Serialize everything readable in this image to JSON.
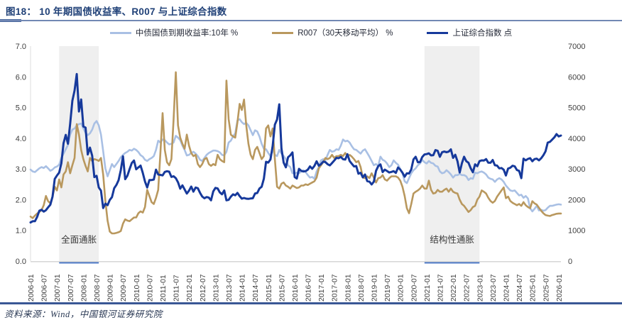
{
  "header": {
    "title": "图18： 10 年期国债收益率、R007 与上证综合指数"
  },
  "legend": [
    {
      "label": "中债国债到期收益率:10年 %",
      "color": "#A9C0E4"
    },
    {
      "label": "R007（30天移动平均） %",
      "color": "#B9985E"
    },
    {
      "label": "上证综合指数 点",
      "color": "#16399B"
    }
  ],
  "footer": {
    "source": "资料来源：Wind，中国银河证券研究院"
  },
  "chart_data": {
    "type": "line",
    "title": "10 年期国债收益率、R007 与上证综合指数",
    "x_start": "2006-01",
    "x_interval": "monthly",
    "x_tick_labels": [
      "2006-01",
      "2006-07",
      "2007-01",
      "2007-07",
      "2008-01",
      "2008-07",
      "2009-01",
      "2009-07",
      "2010-01",
      "2010-07",
      "2011-01",
      "2011-07",
      "2012-01",
      "2012-07",
      "2013-01",
      "2013-07",
      "2014-01",
      "2014-07",
      "2015-01",
      "2015-07",
      "2016-01",
      "2016-07",
      "2017-01",
      "2017-07",
      "2018-01",
      "2018-07",
      "2019-01",
      "2019-07",
      "2020-01",
      "2020-07",
      "2021-01",
      "2021-07",
      "2022-01",
      "2022-07",
      "2023-01",
      "2023-07",
      "2024-01",
      "2024-07",
      "2025-01",
      "2025-07",
      "2026-01"
    ],
    "left_axis": {
      "ticks": [
        "7.0",
        "6.0",
        "5.0",
        "4.0",
        "3.0",
        "2.0",
        "1.0",
        "0.0"
      ],
      "min": 0,
      "max": 7
    },
    "right_axis": {
      "ticks": [
        "7000",
        "6000",
        "5000",
        "4000",
        "3000",
        "2000",
        "1000",
        "0"
      ],
      "min": 0,
      "max": 7000
    },
    "bands": [
      {
        "label": "全面通胀",
        "x_from": "2007-02",
        "x_to": "2008-08"
      },
      {
        "label": "结构性通胀",
        "x_from": "2020-12",
        "x_to": "2023-01"
      }
    ],
    "series": [
      {
        "name": "中债国债到期收益率:10年 %",
        "axis": "left",
        "color": "#A9C0E4",
        "values": [
          2.98,
          2.92,
          2.9,
          2.96,
          3.02,
          3.06,
          3.03,
          3.09,
          3.02,
          2.94,
          2.98,
          3.05,
          3.08,
          3.14,
          3.36,
          3.5,
          3.64,
          3.78,
          4.12,
          4.28,
          4.32,
          4.42,
          4.46,
          4.48,
          4.32,
          4.18,
          4.1,
          4.16,
          4.28,
          4.48,
          4.56,
          4.42,
          4.12,
          3.58,
          3.02,
          2.76,
          2.96,
          3.16,
          3.06,
          3.16,
          3.26,
          3.38,
          3.46,
          3.52,
          3.56,
          3.62,
          3.6,
          3.66,
          3.62,
          3.55,
          3.45,
          3.4,
          3.3,
          3.26,
          3.32,
          3.36,
          3.42,
          3.62,
          3.92,
          3.86,
          3.96,
          3.94,
          3.86,
          3.8,
          3.82,
          3.86,
          4.08,
          4.02,
          3.94,
          3.76,
          3.62,
          3.44,
          3.46,
          3.52,
          3.56,
          3.5,
          3.42,
          3.3,
          3.26,
          3.36,
          3.46,
          3.52,
          3.56,
          3.6,
          3.6,
          3.58,
          3.54,
          3.46,
          3.44,
          3.56,
          3.86,
          3.92,
          4.06,
          4.16,
          4.58,
          4.62,
          4.52,
          4.46,
          4.5,
          4.42,
          4.26,
          4.1,
          4.26,
          4.22,
          4.06,
          3.82,
          3.66,
          3.64,
          3.52,
          3.42,
          3.62,
          3.46,
          3.42,
          3.62,
          3.5,
          3.42,
          3.32,
          3.12,
          3.06,
          2.86,
          2.86,
          2.88,
          2.86,
          2.92,
          2.96,
          2.9,
          2.8,
          2.72,
          2.74,
          2.68,
          2.92,
          3.06,
          3.28,
          3.32,
          3.28,
          3.46,
          3.62,
          3.56,
          3.58,
          3.64,
          3.62,
          3.76,
          3.96,
          3.9,
          3.92,
          3.86,
          3.74,
          3.64,
          3.62,
          3.56,
          3.5,
          3.6,
          3.64,
          3.52,
          3.4,
          3.26,
          3.12,
          3.16,
          3.1,
          3.4,
          3.3,
          3.26,
          3.18,
          3.06,
          3.12,
          3.28,
          3.2,
          3.14,
          3.0,
          2.86,
          2.6,
          2.54,
          2.7,
          2.86,
          2.96,
          3.02,
          3.12,
          3.18,
          3.3,
          3.22,
          3.18,
          3.26,
          3.2,
          3.18,
          3.1,
          3.08,
          2.92,
          2.86,
          2.88,
          2.96,
          2.9,
          2.82,
          2.72,
          2.8,
          2.8,
          2.84,
          2.8,
          2.8,
          2.76,
          2.64,
          2.7,
          2.68,
          2.88,
          2.86,
          2.9,
          2.92,
          2.88,
          2.82,
          2.72,
          2.68,
          2.66,
          2.58,
          2.66,
          2.7,
          2.66,
          2.58,
          2.46,
          2.38,
          2.3,
          2.28,
          2.3,
          2.22,
          2.14,
          2.16,
          2.06,
          2.12,
          2.04,
          1.72,
          1.62,
          1.7,
          1.8,
          1.65,
          1.67,
          1.64,
          1.66,
          1.74,
          1.8,
          1.8,
          1.82,
          1.84,
          1.85,
          1.84
        ]
      },
      {
        "name": "R007（30天移动平均） %",
        "axis": "left",
        "color": "#B9985E",
        "values": [
          1.45,
          1.4,
          1.48,
          1.55,
          1.6,
          1.66,
          1.82,
          2.12,
          1.95,
          1.88,
          2.1,
          2.42,
          2.3,
          2.66,
          2.4,
          2.82,
          2.92,
          3.22,
          2.86,
          3.12,
          3.36,
          4.46,
          4.12,
          3.62,
          3.32,
          3.1,
          2.92,
          3.36,
          3.26,
          3.32,
          3.3,
          3.26,
          3.36,
          2.82,
          1.96,
          1.32,
          0.96,
          0.9,
          0.9,
          0.92,
          0.94,
          0.98,
          1.22,
          1.36,
          1.32,
          1.3,
          1.36,
          1.42,
          1.42,
          1.56,
          1.62,
          1.58,
          1.76,
          2.32,
          2.12,
          1.92,
          1.86,
          2.06,
          2.32,
          3.52,
          4.82,
          3.62,
          3.22,
          3.12,
          3.32,
          4.62,
          6.15,
          4.42,
          4.02,
          3.82,
          3.66,
          4.12,
          3.76,
          3.52,
          3.42,
          3.46,
          3.16,
          3.06,
          3.16,
          3.32,
          3.36,
          3.16,
          3.1,
          3.16,
          3.12,
          3.46,
          3.32,
          3.26,
          3.22,
          5.88,
          4.62,
          4.12,
          4.06,
          4.02,
          4.52,
          5.12,
          4.92,
          5.26,
          4.42,
          3.82,
          3.46,
          3.32,
          3.62,
          3.72,
          3.52,
          3.32,
          3.42,
          4.32,
          4.42,
          4.06,
          4.32,
          3.32,
          2.42,
          2.36,
          2.52,
          2.56,
          2.46,
          2.42,
          2.36,
          2.46,
          2.42,
          2.38,
          2.4,
          2.46,
          2.46,
          2.5,
          2.48,
          2.52,
          2.56,
          2.6,
          2.72,
          3.02,
          3.12,
          3.22,
          3.36,
          3.32,
          3.36,
          3.46,
          3.36,
          3.42,
          3.42,
          3.46,
          3.42,
          3.52,
          3.42,
          3.46,
          3.4,
          3.32,
          3.22,
          3.26,
          3.06,
          2.72,
          2.7,
          2.76,
          2.7,
          2.86,
          2.72,
          2.56,
          2.7,
          2.72,
          2.8,
          2.66,
          2.62,
          2.7,
          2.76,
          2.76,
          2.76,
          2.72,
          2.62,
          2.42,
          2.12,
          1.72,
          1.56,
          1.86,
          2.2,
          2.26,
          2.3,
          2.36,
          2.46,
          2.36,
          2.36,
          2.62,
          2.32,
          2.2,
          2.22,
          2.32,
          2.26,
          2.26,
          2.32,
          2.36,
          2.26,
          2.36,
          2.26,
          2.22,
          2.2,
          2.0,
          1.86,
          1.8,
          1.7,
          1.6,
          1.66,
          1.76,
          1.8,
          2.0,
          2.1,
          2.3,
          2.26,
          2.2,
          2.06,
          1.96,
          1.9,
          1.96,
          2.1,
          2.2,
          2.3,
          2.4,
          2.05,
          2.1,
          1.96,
          1.9,
          1.86,
          1.82,
          1.86,
          1.8,
          1.92,
          1.82,
          1.76,
          1.72,
          1.95,
          1.88,
          1.84,
          1.74,
          1.64,
          1.56,
          1.5,
          1.48,
          1.47,
          1.5,
          1.52,
          1.54,
          1.55,
          1.55
        ]
      },
      {
        "name": "上证综合指数 点",
        "axis": "right",
        "color": "#16399B",
        "values": [
          1258,
          1299,
          1298,
          1440,
          1641,
          1672,
          1612,
          1658,
          1752,
          1837,
          2099,
          2675,
          2786,
          2881,
          3184,
          3841,
          4109,
          3820,
          4471,
          5218,
          5552,
          6092,
          4872,
          5262,
          4383,
          4348,
          3473,
          3693,
          3433,
          2736,
          2776,
          2397,
          2294,
          1729,
          1871,
          1821,
          1991,
          2083,
          2373,
          2478,
          2633,
          2959,
          3412,
          2668,
          2779,
          2995,
          3195,
          3277,
          2989,
          3052,
          3109,
          2871,
          2592,
          2398,
          2638,
          2639,
          2656,
          2979,
          2820,
          2808,
          2790,
          2905,
          2928,
          2911,
          2743,
          2762,
          2701,
          2567,
          2359,
          2468,
          2333,
          2199,
          2293,
          2428,
          2262,
          2396,
          2372,
          2225,
          2103,
          2047,
          2086,
          2068,
          1980,
          2269,
          2385,
          2365,
          2237,
          2177,
          2301,
          1979,
          1994,
          2098,
          2175,
          2141,
          2221,
          2116,
          2033,
          2056,
          2033,
          2026,
          2039,
          2048,
          2201,
          2217,
          2364,
          2420,
          2683,
          3235,
          3210,
          3310,
          3748,
          4442,
          4612,
          5105,
          3664,
          3206,
          3053,
          3383,
          3445,
          3539,
          2738,
          2688,
          3004,
          2938,
          2917,
          2930,
          2979,
          3085,
          3005,
          3100,
          3250,
          3104,
          3159,
          3242,
          3223,
          3155,
          3117,
          3192,
          3273,
          3361,
          3349,
          3393,
          3317,
          3307,
          3481,
          3259,
          3169,
          3082,
          3095,
          2847,
          2876,
          2725,
          2821,
          2603,
          2588,
          2494,
          2585,
          2941,
          3091,
          3150,
          2899,
          2979,
          2933,
          2886,
          2905,
          2929,
          2872,
          3050,
          2977,
          2880,
          2750,
          2860,
          2852,
          2985,
          3310,
          3396,
          3218,
          3225,
          3392,
          3473,
          3483,
          3509,
          3442,
          3447,
          3615,
          3591,
          3397,
          3544,
          3568,
          3547,
          3564,
          3639,
          3361,
          3462,
          3252,
          2886,
          3186,
          3399,
          3253,
          3202,
          3024,
          2893,
          3151,
          3089,
          3256,
          3280,
          3273,
          3323,
          3205,
          3202,
          3291,
          3120,
          3110,
          3019,
          3030,
          2975,
          2789,
          3015,
          3041,
          3104,
          3087,
          2967,
          2939,
          2700,
          3336,
          3280,
          3326,
          3352,
          3251,
          3321,
          3336,
          3280,
          3347,
          3444,
          3573,
          3858,
          3883,
          3954,
          4030,
          4135,
          4060,
          4090
        ]
      }
    ]
  }
}
